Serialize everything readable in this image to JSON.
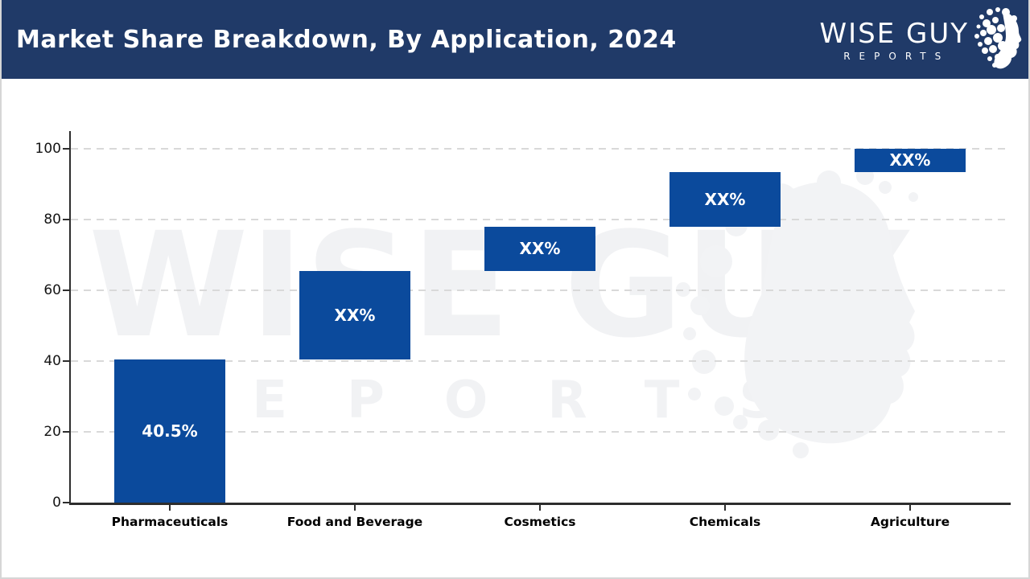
{
  "header": {
    "title": "Market Share Breakdown, By Application, 2024",
    "bg_color": "#203a68"
  },
  "logo": {
    "line1": "WISE GUY",
    "line2": "REPORTS",
    "face_icon": "dotted-head-profile"
  },
  "watermark": {
    "line1": "WISE GUY",
    "line2": "REPORTS",
    "face_icon": "dotted-head-profile",
    "color": "#f1f2f4"
  },
  "chart_data": {
    "type": "bar",
    "subtype": "waterfall",
    "title": "Market Share Breakdown, By Application, 2024",
    "categories": [
      "Pharmaceuticals",
      "Food and Beverage",
      "Cosmetics",
      "Chemicals",
      "Agriculture"
    ],
    "bars": [
      {
        "category": "Pharmaceuticals",
        "start": 0,
        "end": 40.5,
        "label": "40.5%"
      },
      {
        "category": "Food and Beverage",
        "start": 40.5,
        "end": 65.5,
        "label": "XX%"
      },
      {
        "category": "Cosmetics",
        "start": 65.5,
        "end": 78,
        "label": "XX%"
      },
      {
        "category": "Chemicals",
        "start": 78,
        "end": 93.5,
        "label": "XX%"
      },
      {
        "category": "Agriculture",
        "start": 93.5,
        "end": 100,
        "label": "XX%"
      }
    ],
    "xlabel": "",
    "ylabel": "",
    "ylim": [
      0,
      105
    ],
    "y_ticks": [
      0,
      20,
      40,
      60,
      80,
      100
    ],
    "grid": true,
    "grid_style": "dashed",
    "legend": "none",
    "bar_color": "#0b4a9c",
    "bar_label_color": "#ffffff",
    "axis_color": "#2d2d2d",
    "grid_color": "#d9d9d9"
  }
}
